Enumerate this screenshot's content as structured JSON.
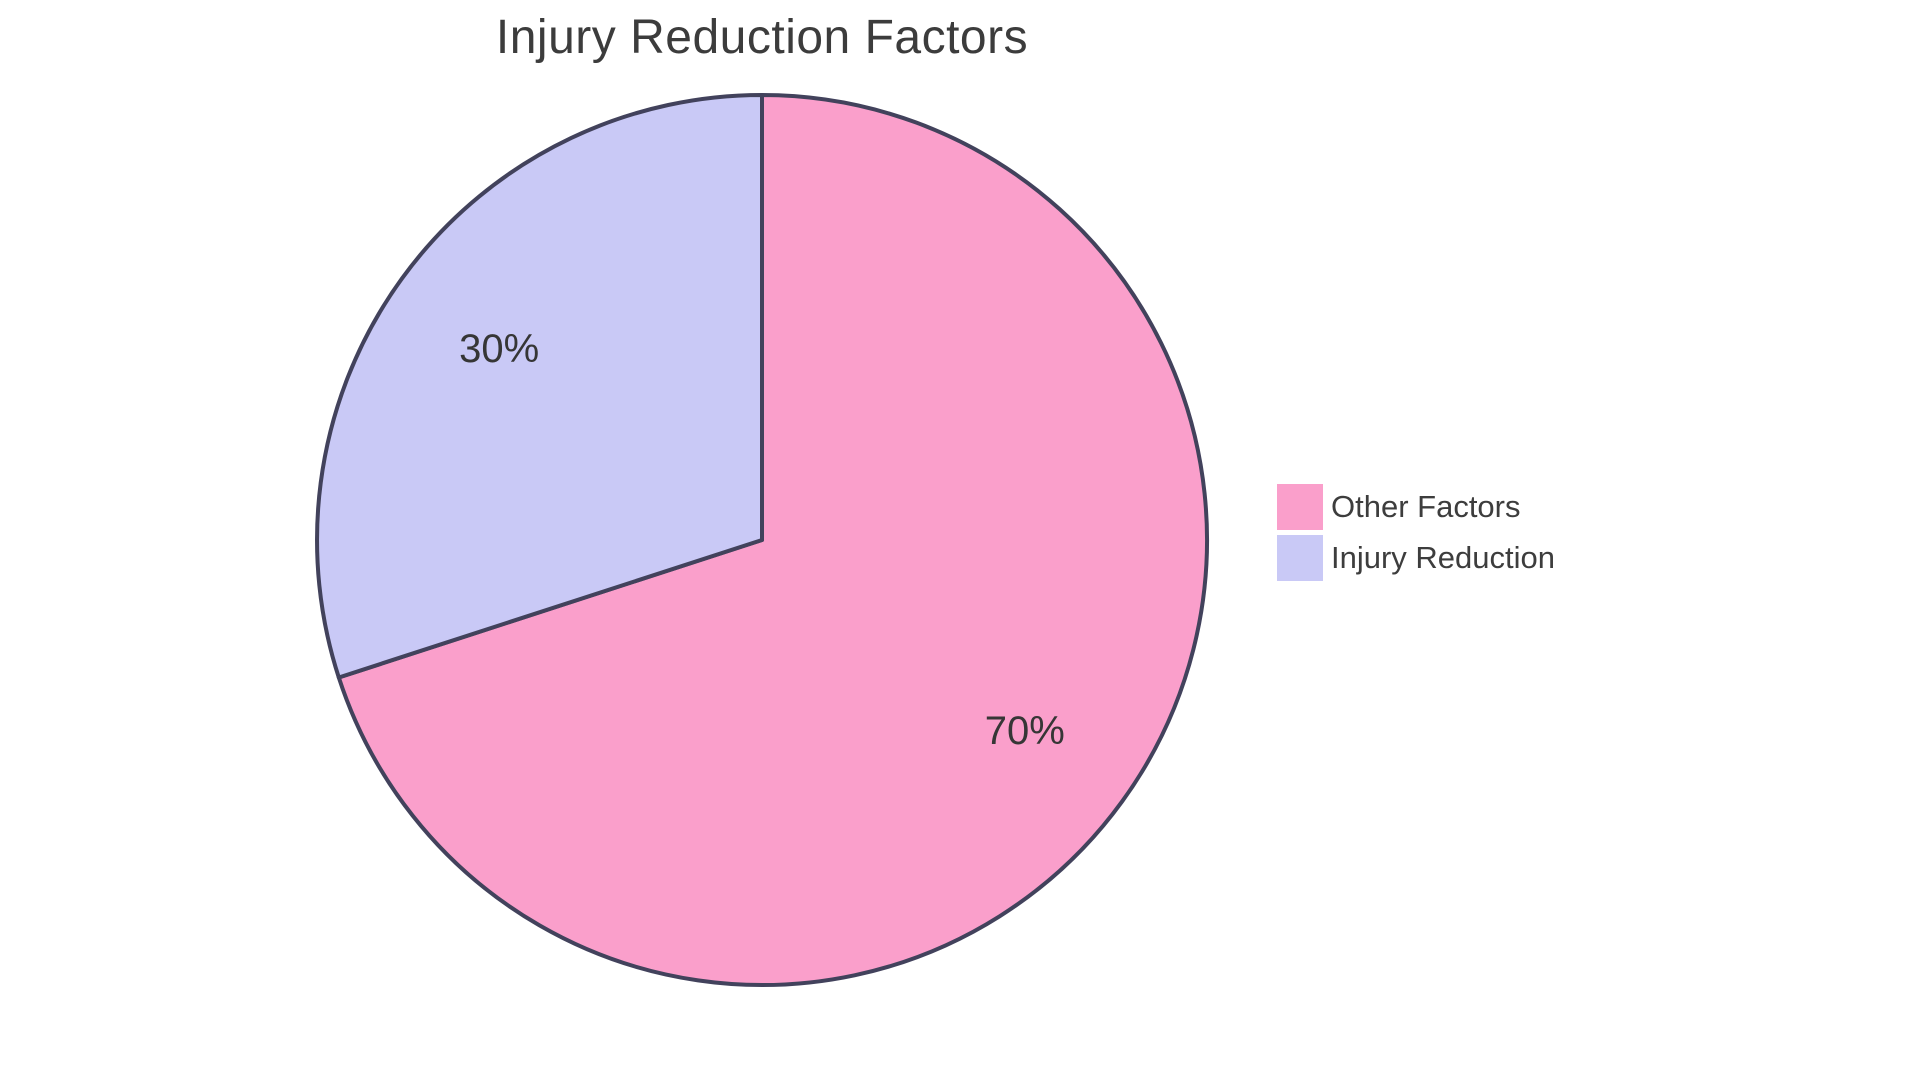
{
  "chart": {
    "title": "Injury Reduction Factors",
    "background_color": "#ffffff",
    "title_color": "#3c3c3c"
  },
  "chart_data": {
    "type": "pie",
    "title": "Injury Reduction Factors",
    "categories": [
      "Other Factors",
      "Injury Reduction"
    ],
    "values": [
      70,
      30
    ],
    "slices": [
      {
        "label": "Other Factors",
        "value": 70,
        "percent_label": "70%",
        "color": "#fa9fcb"
      },
      {
        "label": "Injury Reduction",
        "value": 30,
        "percent_label": "30%",
        "color": "#c9c9f6"
      }
    ],
    "start_angle": "12-oclock",
    "direction": "clockwise",
    "stroke_color": "#42425c",
    "stroke_width": 4,
    "label_color": "#363636",
    "labels_position": "inside",
    "legend_position": "right"
  },
  "legend": {
    "items": [
      {
        "label": "Other Factors",
        "color": "#fa9fcb"
      },
      {
        "label": "Injury Reduction",
        "color": "#c9c9f6"
      }
    ]
  }
}
